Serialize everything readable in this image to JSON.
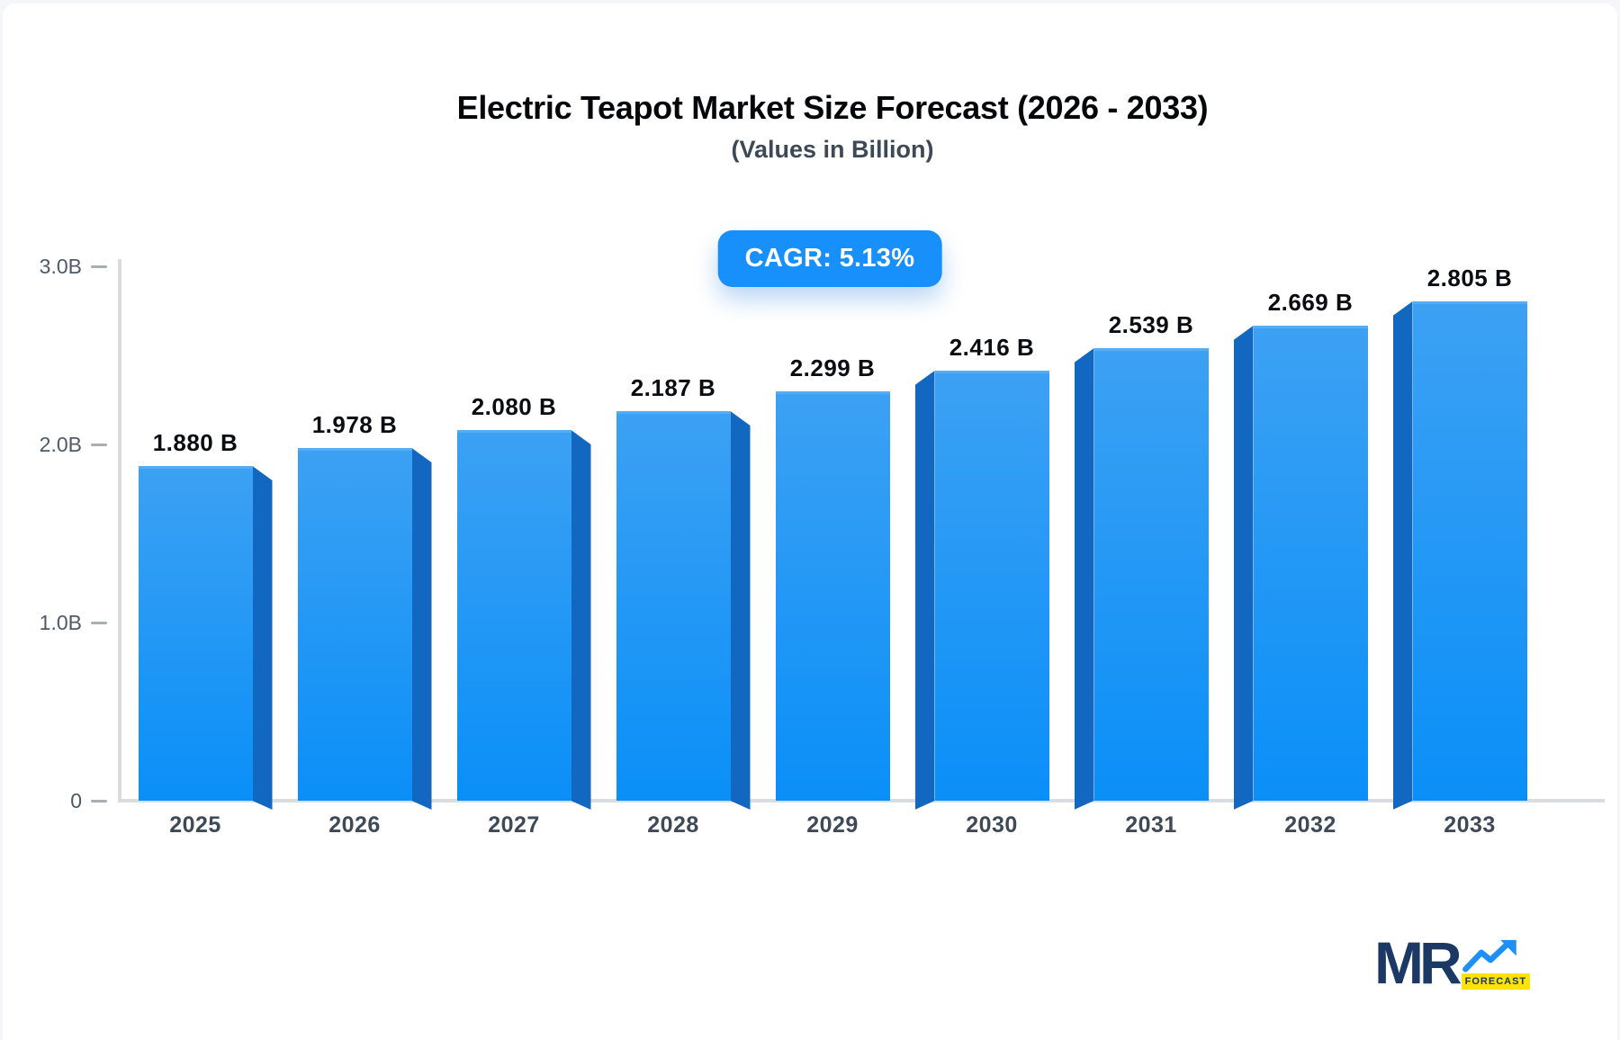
{
  "header": {
    "title": "Electric Teapot Market Size Forecast (2026 - 2033)",
    "subtitle": "(Values in Billion)",
    "cagr_label": "CAGR: 5.13%"
  },
  "chart_data": {
    "type": "bar",
    "title": "Electric Teapot Market Size Forecast (2026 - 2033)",
    "subtitle": "(Values in Billion)",
    "cagr_percent": 5.13,
    "categories": [
      "2025",
      "2026",
      "2027",
      "2028",
      "2029",
      "2030",
      "2031",
      "2032",
      "2033"
    ],
    "values": [
      1.88,
      1.978,
      2.08,
      2.187,
      2.299,
      2.416,
      2.539,
      2.669,
      2.805
    ],
    "value_labels": [
      "1.880 B",
      "1.978 B",
      "2.080 B",
      "2.187 B",
      "2.299 B",
      "2.416 B",
      "2.539 B",
      "2.669 B",
      "2.805 B"
    ],
    "unit": "B",
    "ylim": [
      0,
      3.0
    ],
    "y_ticks": [
      {
        "value": 0,
        "label": "0"
      },
      {
        "value": 1,
        "label": "1.0B"
      },
      {
        "value": 2,
        "label": "2.0B"
      },
      {
        "value": 3,
        "label": "3.0B"
      }
    ],
    "grid": false,
    "legend": null,
    "colors": {
      "bar_face_top": "#3ca1f3",
      "bar_face_bottom": "#0a8ff8",
      "bar_side": "#1267c1",
      "bar_top_highlight": "#55adf6",
      "badge_blue": "#1890fb",
      "axis_gray": "#d9dce0",
      "tick_text": "#4e5a68",
      "value_text": "#0a0d12"
    }
  },
  "logo": {
    "mr": "MR",
    "forecast": "FORECAST"
  }
}
